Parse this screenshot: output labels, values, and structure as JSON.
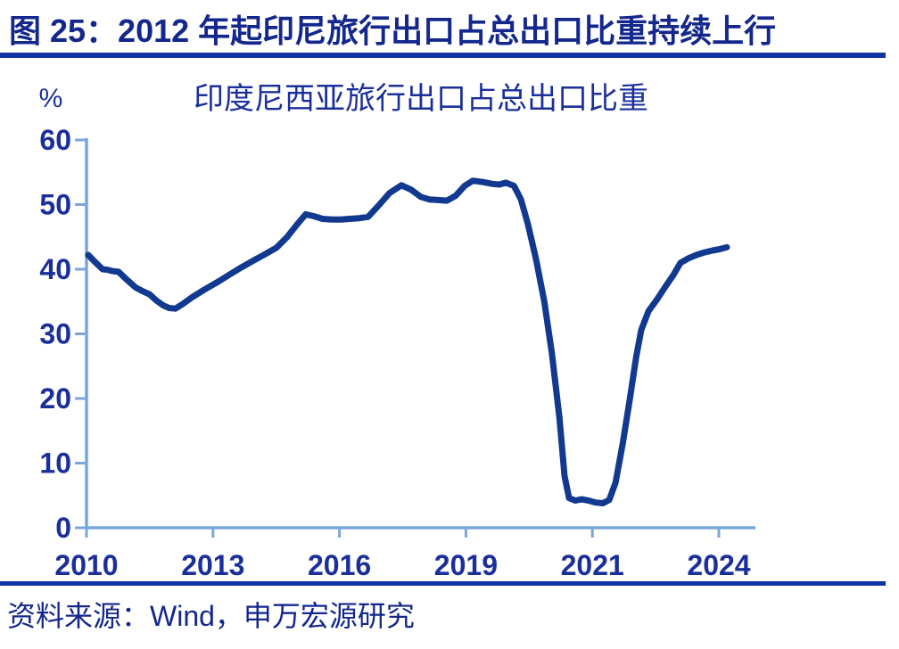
{
  "header": {
    "title": "图 25：2012 年起印尼旅行出口占总出口比重持续上行"
  },
  "footer": {
    "source": "资料来源：Wind，申万宏源研究"
  },
  "colors": {
    "navy_text": "#14278c",
    "label_blue": "#1b2f9b",
    "rule_blue": "#1133a3",
    "series_line_blue": "#11398f",
    "axis_light_blue": "#7aa7da"
  },
  "chart_data": {
    "type": "line",
    "title": "印度尼西亚旅行出口占总出口比重",
    "unit_label": "%",
    "xlabel": "",
    "ylabel": "%",
    "ylim": [
      0,
      60
    ],
    "y_ticks": [
      0,
      10,
      20,
      30,
      40,
      50,
      60
    ],
    "x_tick_labels": [
      "2010",
      "2013",
      "2016",
      "2019",
      "2021",
      "2024"
    ],
    "x_tick_years": [
      2010,
      2013,
      2016,
      2019,
      2021,
      2024
    ],
    "grid": false,
    "legend_position": "none",
    "series": [
      {
        "name": "印度尼西亚旅行出口占总出口比重(%)",
        "points": [
          [
            2010.04,
            42.2
          ],
          [
            2010.19,
            41.2
          ],
          [
            2010.38,
            40.0
          ],
          [
            2010.51,
            39.9
          ],
          [
            2010.63,
            39.7
          ],
          [
            2010.76,
            39.6
          ],
          [
            2010.97,
            38.3
          ],
          [
            2011.16,
            37.2
          ],
          [
            2011.33,
            36.6
          ],
          [
            2011.5,
            36.1
          ],
          [
            2011.65,
            35.2
          ],
          [
            2011.82,
            34.4
          ],
          [
            2011.96,
            34.0
          ],
          [
            2012.11,
            33.9
          ],
          [
            2012.28,
            34.6
          ],
          [
            2012.49,
            35.6
          ],
          [
            2012.81,
            36.9
          ],
          [
            2013.13,
            38.1
          ],
          [
            2013.4,
            39.2
          ],
          [
            2013.68,
            40.3
          ],
          [
            2013.95,
            41.3
          ],
          [
            2014.23,
            42.3
          ],
          [
            2014.5,
            43.3
          ],
          [
            2014.76,
            45.0
          ],
          [
            2014.99,
            46.9
          ],
          [
            2015.2,
            48.5
          ],
          [
            2015.39,
            48.2
          ],
          [
            2015.6,
            47.8
          ],
          [
            2015.82,
            47.7
          ],
          [
            2016.03,
            47.7
          ],
          [
            2016.24,
            47.8
          ],
          [
            2016.47,
            47.9
          ],
          [
            2016.68,
            48.1
          ],
          [
            2016.92,
            49.8
          ],
          [
            2017.19,
            51.8
          ],
          [
            2017.47,
            53.0
          ],
          [
            2017.7,
            52.3
          ],
          [
            2017.93,
            51.2
          ],
          [
            2018.13,
            50.8
          ],
          [
            2018.34,
            50.7
          ],
          [
            2018.55,
            50.6
          ],
          [
            2018.76,
            51.4
          ],
          [
            2018.97,
            52.9
          ],
          [
            2019.11,
            53.7
          ],
          [
            2019.26,
            53.5
          ],
          [
            2019.42,
            53.2
          ],
          [
            2019.53,
            53.1
          ],
          [
            2019.63,
            53.4
          ],
          [
            2019.76,
            52.9
          ],
          [
            2019.87,
            50.8
          ],
          [
            2019.98,
            47.0
          ],
          [
            2020.11,
            41.5
          ],
          [
            2020.24,
            35.0
          ],
          [
            2020.36,
            27.0
          ],
          [
            2020.48,
            17.0
          ],
          [
            2020.56,
            8.0
          ],
          [
            2020.63,
            4.6
          ],
          [
            2020.73,
            4.2
          ],
          [
            2020.83,
            4.4
          ],
          [
            2020.94,
            4.2
          ],
          [
            2021.08,
            3.9
          ],
          [
            2021.25,
            3.8
          ],
          [
            2021.4,
            4.3
          ],
          [
            2021.55,
            7.0
          ],
          [
            2021.72,
            13.0
          ],
          [
            2021.89,
            20.0
          ],
          [
            2022.04,
            26.5
          ],
          [
            2022.16,
            30.6
          ],
          [
            2022.33,
            33.5
          ],
          [
            2022.54,
            35.4
          ],
          [
            2022.73,
            37.3
          ],
          [
            2022.92,
            39.1
          ],
          [
            2023.09,
            41.0
          ],
          [
            2023.28,
            41.7
          ],
          [
            2023.47,
            42.2
          ],
          [
            2023.66,
            42.6
          ],
          [
            2023.85,
            42.9
          ],
          [
            2024.02,
            43.1
          ],
          [
            2024.19,
            43.4
          ]
        ]
      }
    ]
  }
}
